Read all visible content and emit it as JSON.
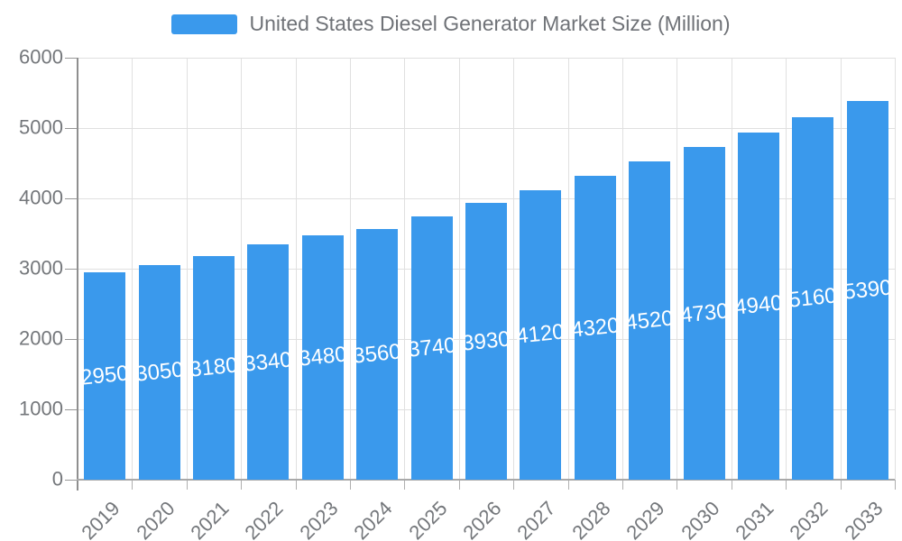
{
  "legend": {
    "label": "United States Diesel Generator Market Size (Million)"
  },
  "chart_data": {
    "type": "bar",
    "title": "United States Diesel Generator Market Size (Million)",
    "categories": [
      "2019",
      "2020",
      "2021",
      "2022",
      "2023",
      "2024",
      "2025",
      "2026",
      "2027",
      "2028",
      "2029",
      "2030",
      "2031",
      "2032",
      "2033"
    ],
    "values": [
      2950,
      3050,
      3180,
      3340,
      3480,
      3560,
      3740,
      3930,
      4120,
      4320,
      4520,
      4730,
      4940,
      5160,
      5390
    ],
    "series": [
      {
        "name": "United States Diesel Generator Market Size (Million)",
        "values": [
          2950,
          3050,
          3180,
          3340,
          3480,
          3560,
          3740,
          3930,
          4120,
          4320,
          4520,
          4730,
          4940,
          5160,
          5390
        ]
      }
    ],
    "xlabel": "",
    "ylabel": "",
    "ylim": [
      0,
      6000
    ],
    "ytick_step": 1000,
    "yticks": [
      "0",
      "1000",
      "2000",
      "3000",
      "4000",
      "5000",
      "6000"
    ],
    "grid": true,
    "legend_position": "top",
    "bar_color": "#3A99EC",
    "grid_color": "#E0E0E0",
    "axis_text_color": "#74777B",
    "bar_label_color": "#ffffff",
    "bar_label_rotation_deg": -6,
    "x_label_rotation_deg": -45
  }
}
